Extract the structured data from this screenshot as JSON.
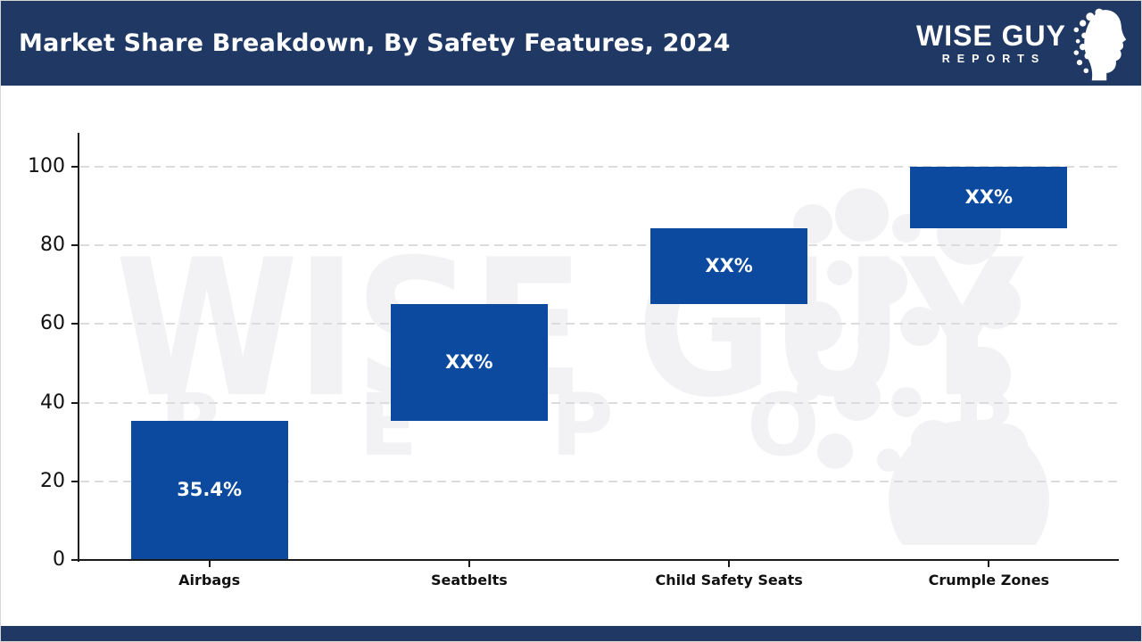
{
  "header": {
    "title": "Market Share Breakdown, By Safety Features, 2024",
    "background_color": "#203864",
    "logo": {
      "line1": "WISE GUY",
      "line2": "REPORTS"
    }
  },
  "watermark": {
    "line1": "WISE GUY",
    "line2": "R E P O R T S"
  },
  "chart_data": {
    "type": "bar",
    "subtype": "floating-waterfall",
    "title": "Market Share Breakdown, By Safety Features, 2024",
    "categories": [
      "Airbags",
      "Seatbelts",
      "Child Safety Seats",
      "Crumple Zones"
    ],
    "series": [
      {
        "name": "Market Share (%)",
        "segments": [
          {
            "category": "Airbags",
            "from": 0,
            "to": 35.4,
            "label": "35.4%"
          },
          {
            "category": "Seatbelts",
            "from": 35.4,
            "to": 65.0,
            "label": "XX%"
          },
          {
            "category": "Child Safety Seats",
            "from": 65.0,
            "to": 84.3,
            "label": "XX%"
          },
          {
            "category": "Crumple Zones",
            "from": 84.3,
            "to": 100.0,
            "label": "XX%"
          }
        ]
      }
    ],
    "yticks": [
      0,
      20,
      40,
      60,
      80,
      100
    ],
    "ylim": [
      0,
      108
    ],
    "xlabel": "",
    "ylabel": "",
    "grid": "horizontal-dashed",
    "legend": "none",
    "bar_color": "#0B4A9F",
    "bar_label_color": "#FFFFFF",
    "gridline_color": "#DCDCDC"
  },
  "footer": {
    "background_color": "#203864"
  }
}
